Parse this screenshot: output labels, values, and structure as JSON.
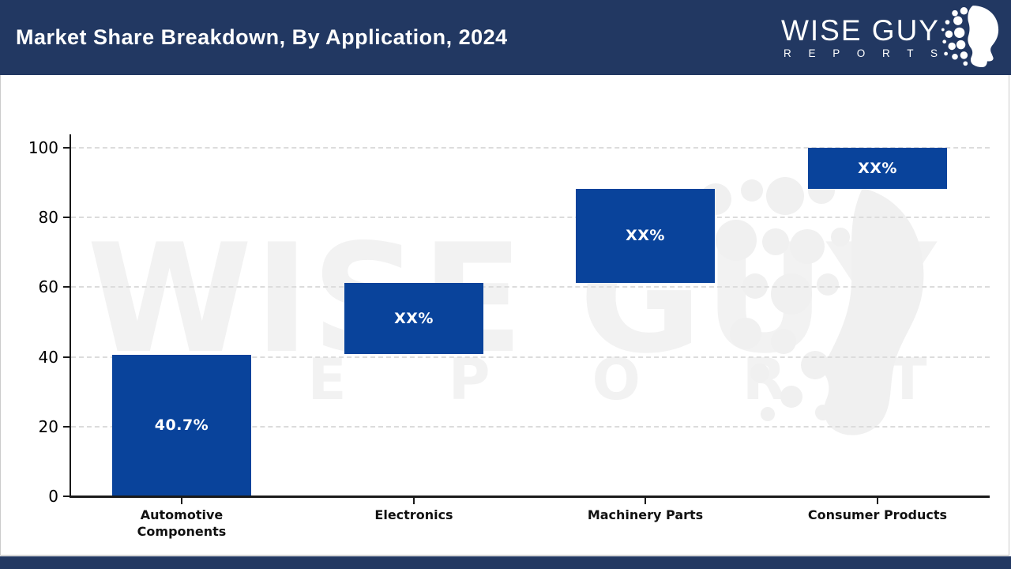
{
  "header": {
    "title": "Market Share Breakdown, By Application, 2024",
    "bg_color": "#223862",
    "logo": {
      "line1": "WISE GUY",
      "line2": "R E P O R T S",
      "head_icon": "dotted-head-profile"
    }
  },
  "watermark": {
    "line1": "WISE GUY",
    "line2": "R E P O R T S"
  },
  "footer": {
    "bg_color": "#223862"
  },
  "chart_data": {
    "type": "bar",
    "subtype": "waterfall",
    "title": "Market Share Breakdown, By Application, 2024",
    "categories": [
      "Automotive Components",
      "Electronics",
      "Machinery Parts",
      "Consumer Products"
    ],
    "segments": [
      {
        "category": "Automotive Components",
        "start": 0,
        "end": 40.7,
        "label": "40.7%"
      },
      {
        "category": "Electronics",
        "start": 40.7,
        "end": 61.2,
        "label": "XX%"
      },
      {
        "category": "Machinery Parts",
        "start": 61.2,
        "end": 88.3,
        "label": "XX%"
      },
      {
        "category": "Consumer Products",
        "start": 88.3,
        "end": 100,
        "label": "XX%"
      }
    ],
    "y_ticks": [
      0,
      20,
      40,
      60,
      80,
      100
    ],
    "ylim": [
      0,
      104
    ],
    "xlabel": "",
    "ylabel": "",
    "grid": "horizontal-dashed",
    "bar_color": "#09439b",
    "grid_color": "#dcdcdc",
    "value_label_color": "#ffffff",
    "legend": "none"
  }
}
